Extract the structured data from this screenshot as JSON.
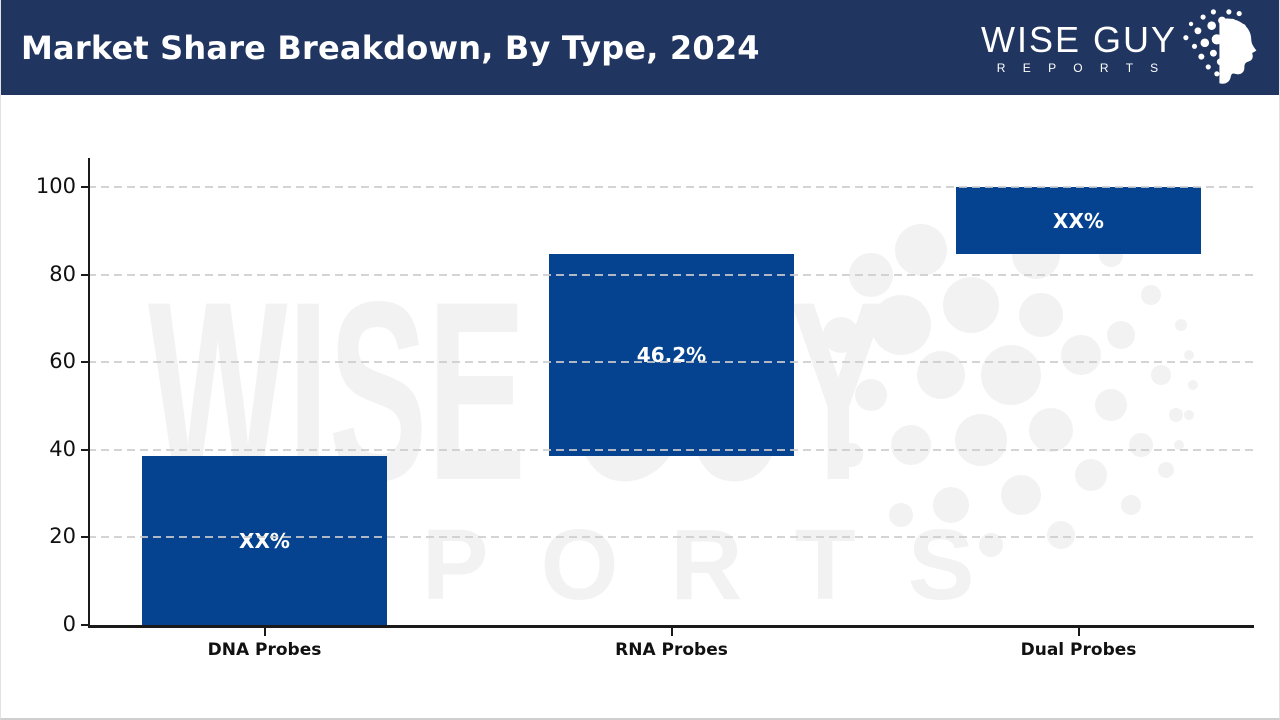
{
  "header": {
    "title": "Market Share Breakdown, By Type, 2024",
    "logo": {
      "line1": "WISE GUY",
      "line2": "R E P O R T S"
    }
  },
  "watermark": {
    "line1": "WISE GUY",
    "line2": "REPORTS"
  },
  "chart_data": {
    "type": "bar",
    "subtype": "waterfall",
    "title": "Market Share Breakdown, By Type, 2024",
    "categories": [
      "DNA Probes",
      "RNA Probes",
      "Dual Probes"
    ],
    "segments": [
      {
        "category": "DNA Probes",
        "start": 0,
        "end": 38.5,
        "value": 38.5,
        "label": "XX%"
      },
      {
        "category": "RNA Probes",
        "start": 38.5,
        "end": 84.7,
        "value": 46.2,
        "label": "46.2%"
      },
      {
        "category": "Dual Probes",
        "start": 84.7,
        "end": 100,
        "value": 15.3,
        "label": "XX%"
      }
    ],
    "ylim": [
      0,
      100
    ],
    "yticks": [
      0,
      20,
      40,
      60,
      80,
      100
    ],
    "xlabel": "",
    "ylabel": "",
    "grid": "horizontal-dashed-above-bars",
    "legend": "none"
  },
  "colors": {
    "header_bg": "#20355F",
    "bar": "#05428F",
    "bar_label": "#ffffff",
    "axis": "#1a1a1a",
    "tick_text": "#111111",
    "grid": "#cdcdcd",
    "watermark": "#f2f2f2"
  }
}
